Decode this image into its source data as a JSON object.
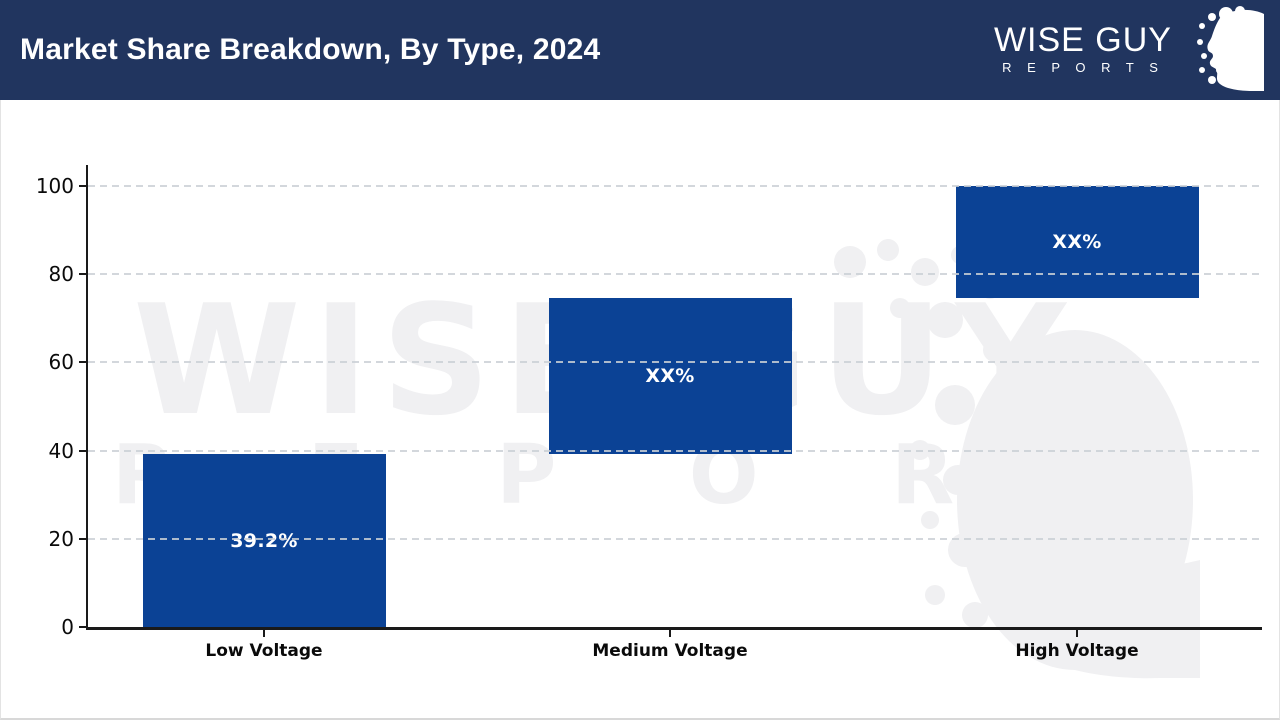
{
  "header": {
    "title": "Market Share Breakdown, By Type, 2024",
    "logo": {
      "name_line": "WISE GUY",
      "sub_line": "R E P O R T S"
    }
  },
  "watermark": {
    "line1": "WISE GUY",
    "line2": "R E P O R T S"
  },
  "chart_data": {
    "type": "bar",
    "subtype": "floating-segment-breakdown",
    "title": "Market Share Breakdown, By Type, 2024",
    "categories": [
      "Low Voltage",
      "Medium Voltage",
      "High Voltage"
    ],
    "bars": [
      {
        "category": "Low Voltage",
        "start": 0,
        "end": 39.2,
        "label": "39.2%"
      },
      {
        "category": "Medium Voltage",
        "start": 39.2,
        "end": 74.5,
        "label": "XX%"
      },
      {
        "category": "High Voltage",
        "start": 74.5,
        "end": 100,
        "label": "XX%"
      }
    ],
    "y_ticks": [
      0,
      20,
      40,
      60,
      80,
      100
    ],
    "ylim": [
      0,
      105
    ],
    "xlabel": "",
    "ylabel": "",
    "grid": "horizontal-dashed",
    "legend": "none",
    "bar_color": "#0b4295",
    "bar_label_color": "#ffffff",
    "header_color": "#21355f"
  }
}
